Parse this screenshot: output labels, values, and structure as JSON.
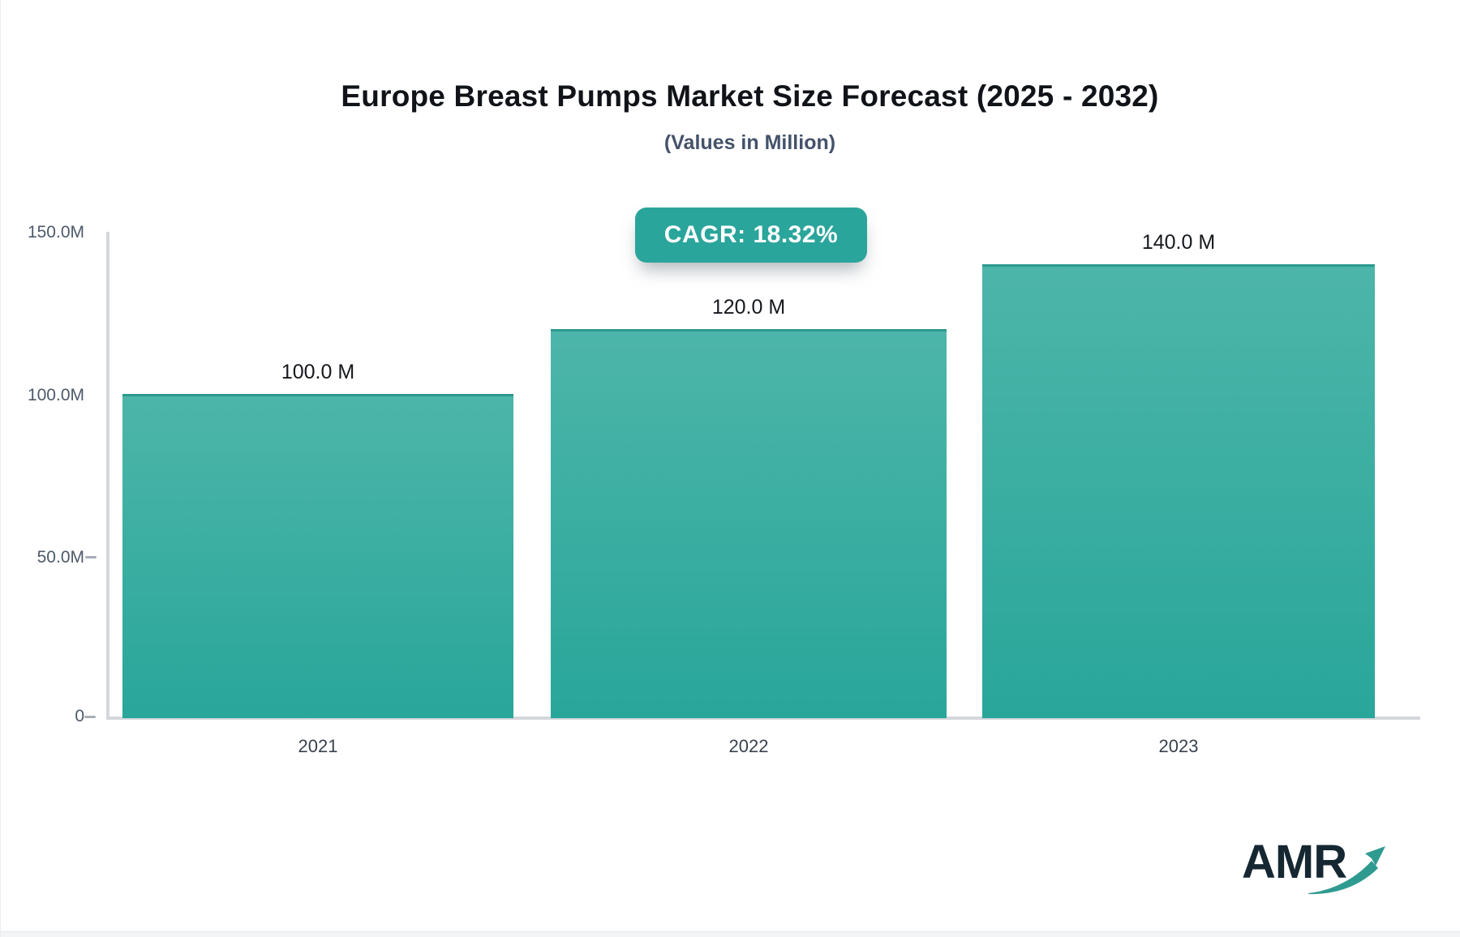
{
  "header": {
    "title": "Europe Breast Pumps Market Size Forecast (2025 - 2032)",
    "subtitle": "(Values in Million)"
  },
  "badge": {
    "label": "CAGR: 18.32%",
    "background": "#2aa59b",
    "text_color": "#ffffff"
  },
  "chart_data": {
    "type": "bar",
    "title": "Europe Breast Pumps Market Size Forecast (2025 - 2032)",
    "subtitle": "(Values in Million)",
    "categories": [
      "2021",
      "2022",
      "2023"
    ],
    "values": [
      100.0,
      120.0,
      140.0
    ],
    "bar_labels": [
      "100.0 M",
      "120.0 M",
      "140.0 M"
    ],
    "unit": "Million",
    "ylim": [
      0,
      150
    ],
    "y_ticks": [
      "150.0M",
      "100.0M",
      "50.0M",
      "0"
    ],
    "grid": "off",
    "legend": "none",
    "bar_color_top": "#4db5a9",
    "bar_color_bottom": "#29a69a",
    "bar_bevel_color": "#1e7a72",
    "axis_color": "#d4d7dc"
  },
  "logo": {
    "text": "AMR",
    "text_color": "#152731",
    "swoosh_color": "#2f9a90"
  }
}
